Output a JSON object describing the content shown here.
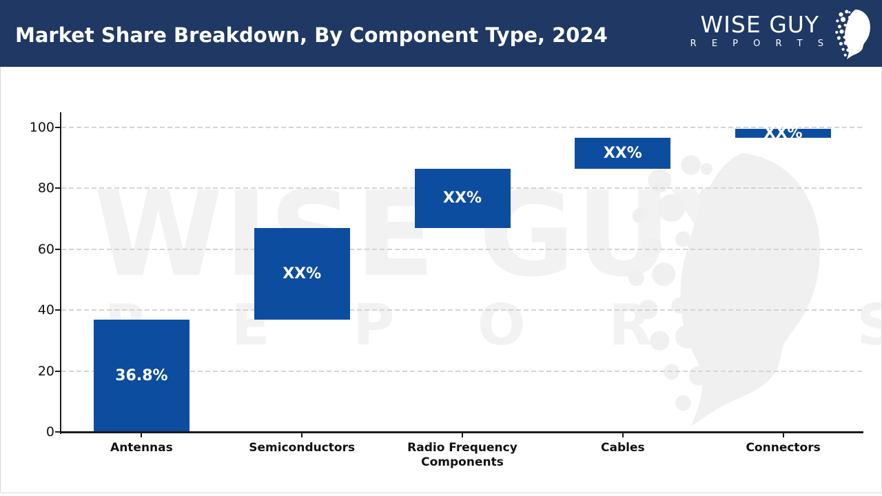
{
  "header": {
    "title": "Market Share Breakdown, By Component Type, 2024",
    "logo": {
      "line1": "WISE GUY",
      "line2": "R E P O R T S"
    }
  },
  "watermark": {
    "line1": "WISE GUY",
    "line2": "R E P O R T S"
  },
  "chart_data": {
    "type": "bar",
    "subtype": "waterfall",
    "title": "Market Share Breakdown, By Component Type, 2024",
    "xlabel": "",
    "ylabel": "",
    "categories": [
      "Antennas",
      "Semiconductors",
      "Radio Frequency Components",
      "Cables",
      "Connectors"
    ],
    "segments": [
      {
        "category": "Antennas",
        "start": 0,
        "end": 36.8,
        "label": "36.8%"
      },
      {
        "category": "Semiconductors",
        "start": 36.8,
        "end": 67,
        "label": "XX%"
      },
      {
        "category": "Radio Frequency Components",
        "start": 67,
        "end": 86.5,
        "label": "XX%"
      },
      {
        "category": "Cables",
        "start": 86.5,
        "end": 96.5,
        "label": "XX%"
      },
      {
        "category": "Connectors",
        "start": 96.5,
        "end": 99.5,
        "label": "XX%"
      }
    ],
    "y_ticks": [
      0,
      20,
      40,
      60,
      80,
      100
    ],
    "ylim": [
      0,
      105
    ],
    "grid": "dashed-horizontal",
    "legend": "none",
    "colors": {
      "bar": "#0D4DA0",
      "bar_label": "#ffffff",
      "header_bg": "#1F3864",
      "grid": "#d4d4d4",
      "axis": "#1a1a1a",
      "watermark": "#f2f2f2"
    }
  }
}
